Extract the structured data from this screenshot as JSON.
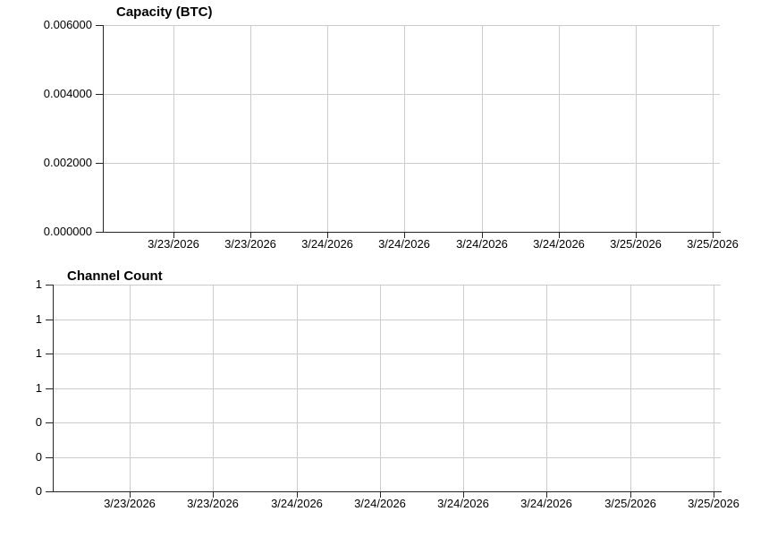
{
  "window": {
    "background": "#ffffff"
  },
  "colors": {
    "grid": "#cccccc",
    "axis": "#262626",
    "tick_text": "#000000",
    "title_text": "#000000"
  },
  "chart_data": [
    {
      "type": "line",
      "title": "Capacity (BTC)",
      "series": [],
      "x_tick_labels": [
        "3/23/2026",
        "3/23/2026",
        "3/24/2026",
        "3/24/2026",
        "3/24/2026",
        "3/24/2026",
        "3/25/2026",
        "3/25/2026"
      ],
      "y_tick_labels": [
        "0.006000",
        "0.004000",
        "0.002000",
        "0.000000"
      ],
      "ylim": [
        0.0,
        0.006
      ],
      "grid": true,
      "legend": false
    },
    {
      "type": "line",
      "title": "Channel Count",
      "series": [],
      "x_tick_labels": [
        "3/23/2026",
        "3/23/2026",
        "3/24/2026",
        "3/24/2026",
        "3/24/2026",
        "3/24/2026",
        "3/25/2026",
        "3/25/2026"
      ],
      "y_tick_labels": [
        "1",
        "1",
        "1",
        "1",
        "0",
        "0",
        "0"
      ],
      "ylim": [
        0,
        1
      ],
      "grid": true,
      "legend": false
    }
  ]
}
